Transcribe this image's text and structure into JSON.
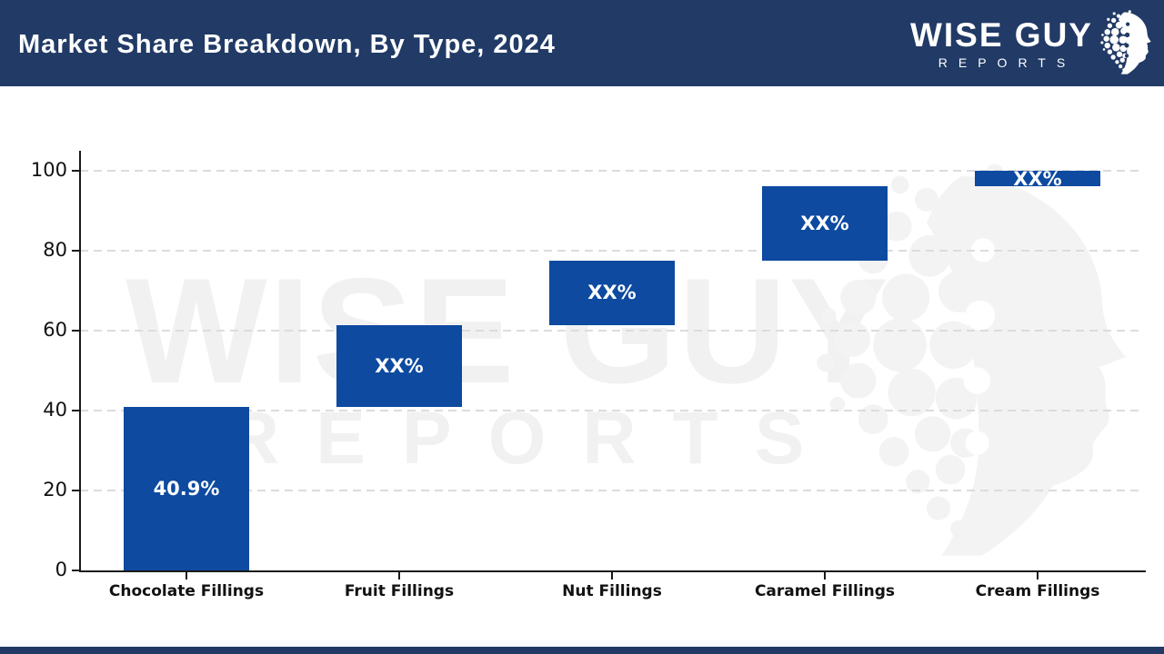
{
  "header": {
    "title": "Market Share Breakdown, By Type, 2024",
    "bg_color": "#213a66",
    "logo_line1": "WISE GUY",
    "logo_line2": "REPORTS"
  },
  "watermark": {
    "line1": "WISE GUY",
    "line2": "REPORTS"
  },
  "chart_data": {
    "type": "bar",
    "subtype": "waterfall",
    "title": "Market Share Breakdown, By Type, 2024",
    "categories": [
      "Chocolate Fillings",
      "Fruit Fillings",
      "Nut Fillings",
      "Caramel Fillings",
      "Cream Fillings"
    ],
    "segments": [
      {
        "category": "Chocolate Fillings",
        "start": 0,
        "end": 40.9,
        "label": "40.9%"
      },
      {
        "category": "Fruit Fillings",
        "start": 40.9,
        "end": 61.4,
        "label": "XX%"
      },
      {
        "category": "Nut Fillings",
        "start": 61.4,
        "end": 77.6,
        "label": "XX%"
      },
      {
        "category": "Caramel Fillings",
        "start": 77.6,
        "end": 96.1,
        "label": "XX%"
      },
      {
        "category": "Cream Fillings",
        "start": 96.1,
        "end": 100.0,
        "label": "XX%"
      }
    ],
    "yticks": [
      0,
      20,
      40,
      60,
      80,
      100
    ],
    "ylim": [
      0,
      104.5
    ],
    "grid": "dashed-horizontal",
    "legend": "none",
    "bar_color": "#0d4aa0",
    "bar_label_color": "#ffffff",
    "axis_color": "#1a1a1a",
    "gridline_color": "#dcdcdc"
  }
}
